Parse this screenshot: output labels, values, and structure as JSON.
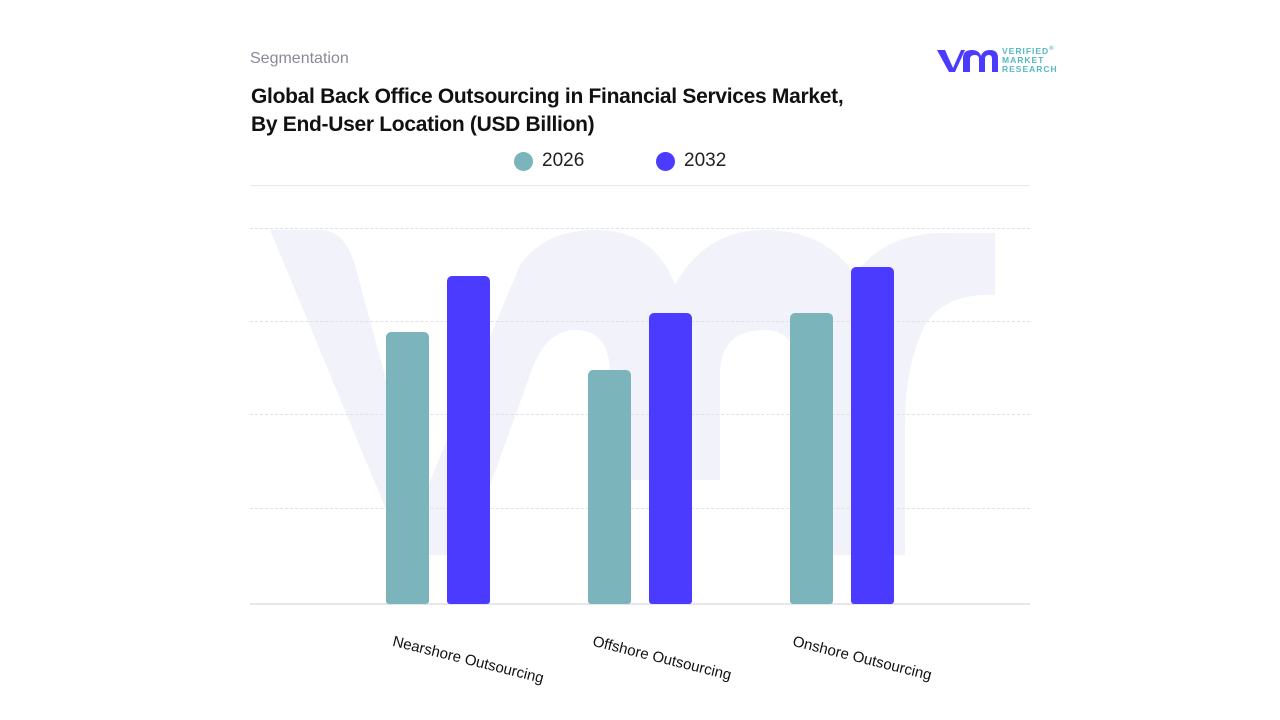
{
  "header": {
    "section_label": "Segmentation",
    "title_line1": "Global Back Office Outsourcing in Financial Services Market,",
    "title_line2": "By End-User Location (USD Billion)"
  },
  "logo": {
    "mark": "vmr",
    "line1": "VERIFIED",
    "line2": "MARKET",
    "line3": "RESEARCH",
    "registered": "®"
  },
  "legend": [
    {
      "label": "2026",
      "color": "#7bb4ba"
    },
    {
      "label": "2032",
      "color": "#4b3aff"
    }
  ],
  "chart_data": {
    "type": "bar",
    "title": "Global Back Office Outsourcing in Financial Services Market, By End-User Location (USD Billion)",
    "xlabel": "",
    "ylabel": "",
    "categories": [
      "Nearshore Outsourcing",
      "Offshore Outsourcing",
      "Onshore Outsourcing"
    ],
    "series": [
      {
        "name": "2026",
        "color": "#7bb4ba",
        "values": [
          2.9,
          2.5,
          3.1
        ]
      },
      {
        "name": "2032",
        "color": "#4b3aff",
        "values": [
          3.5,
          3.1,
          3.6
        ]
      }
    ],
    "ylim": [
      0,
      4
    ],
    "grid": true,
    "y_tick_labels_visible": false,
    "legend_position": "top",
    "note": "Values estimated relative to unlabeled gridlines (4 intervals)"
  }
}
